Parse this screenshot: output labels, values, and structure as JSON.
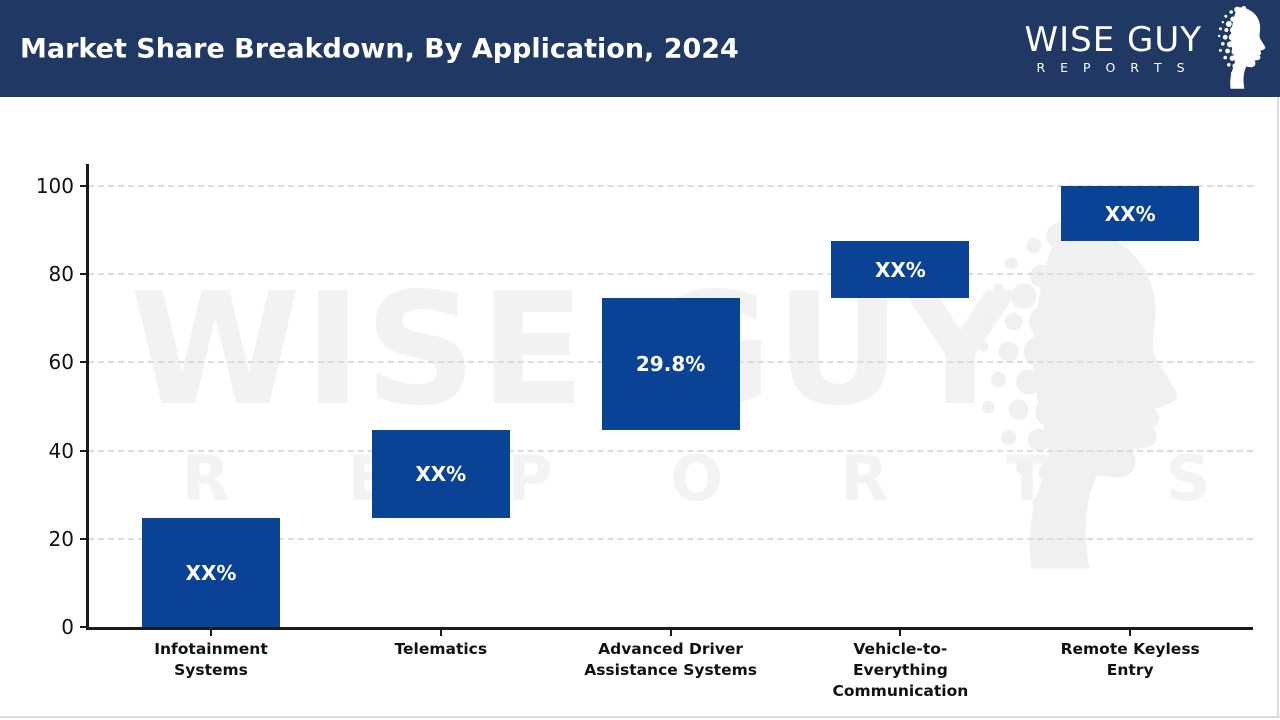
{
  "header": {
    "title": "Market Share Breakdown, By Application, 2024",
    "logo": {
      "line1": "WISE GUY",
      "line2": "R E P O R T S"
    }
  },
  "watermark": {
    "line1": "WISE GUY",
    "line2": "R E P O R T S"
  },
  "colors": {
    "header_bg": "#1F3864",
    "bar": "#0A4296",
    "bar_label": "#FFFFFF",
    "grid": "#DCDCDC",
    "axis": "#1A1A1A",
    "watermark": "#F2F2F2"
  },
  "chart_data": {
    "type": "bar",
    "subtype": "waterfall",
    "title": "Market Share Breakdown, By Application, 2024",
    "xlabel": "",
    "ylabel": "",
    "ylim": [
      0,
      100
    ],
    "yticks": [
      0,
      20,
      40,
      60,
      80,
      100
    ],
    "grid": "horizontal-dashed",
    "legend": "none",
    "categories": [
      [
        "Infotainment",
        "Systems"
      ],
      [
        "Telematics"
      ],
      [
        "Advanced Driver",
        "Assistance Systems"
      ],
      [
        "Vehicle-to-",
        "Everything",
        "Communication"
      ],
      [
        "Remote Keyless",
        "Entry"
      ]
    ],
    "segments": [
      {
        "category": "Infotainment Systems",
        "start": 0,
        "end": 24.7,
        "value": 24.7,
        "label": "XX%"
      },
      {
        "category": "Telematics",
        "start": 24.7,
        "end": 44.7,
        "value": 20.0,
        "label": "XX%"
      },
      {
        "category": "Advanced Driver Assistance Systems",
        "start": 44.7,
        "end": 74.5,
        "value": 29.8,
        "label": "29.8%"
      },
      {
        "category": "Vehicle-to-Everything Communication",
        "start": 74.5,
        "end": 87.5,
        "value": 13.0,
        "label": "XX%"
      },
      {
        "category": "Remote Keyless Entry",
        "start": 87.5,
        "end": 100.0,
        "value": 12.5,
        "label": "XX%"
      }
    ]
  }
}
